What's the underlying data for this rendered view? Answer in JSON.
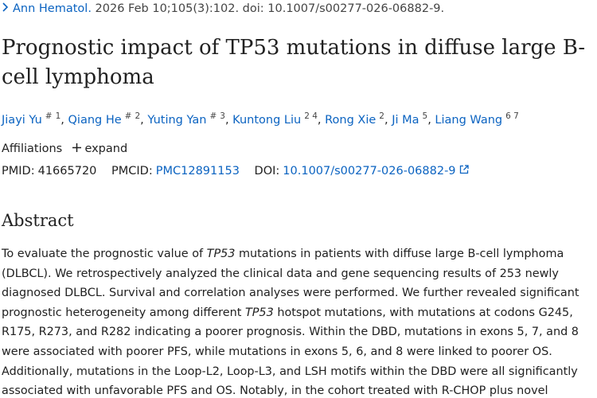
{
  "citation": {
    "journal": "Ann Hematol.",
    "details": "2026 Feb 10;105(3):102. doi: 10.1007/s00277-026-06882-9."
  },
  "title": "Prognostic impact of TP53 mutations in diffuse large B-cell lymphoma",
  "authors_separator": ",",
  "authors": [
    {
      "name": "Jiayi Yu",
      "equal": "#",
      "affiliations": "1"
    },
    {
      "name": "Qiang He",
      "equal": "#",
      "affiliations": "2"
    },
    {
      "name": "Yuting Yan",
      "equal": "#",
      "affiliations": "3"
    },
    {
      "name": "Kuntong Liu",
      "affiliations": "2 4"
    },
    {
      "name": "Rong Xie",
      "affiliations": "2"
    },
    {
      "name": "Ji Ma",
      "affiliations": "5"
    },
    {
      "name": "Liang Wang",
      "affiliations": "6 7"
    }
  ],
  "affiliations_label": "Affiliations",
  "expand_label": "expand",
  "identifiers": {
    "pmid_label": "PMID:",
    "pmid": "41665720",
    "pmcid_label": "PMCID:",
    "pmcid": "PMC12891153",
    "doi_label": "DOI:",
    "doi": "10.1007/s00277-026-06882-9"
  },
  "abstract": {
    "heading": "Abstract",
    "segments": [
      {
        "text": "To evaluate the prognostic value of "
      },
      {
        "text": "TP53",
        "italic": true
      },
      {
        "text": " mutations in patients with diffuse large B-cell lymphoma (DLBCL). We retrospectively analyzed the clinical data and gene sequencing results of 253 newly diagnosed DLBCL. Survival and correlation analyses were performed. We further revealed significant prognostic heterogeneity among different "
      },
      {
        "text": "TP53",
        "italic": true
      },
      {
        "text": " hotspot mutations, with mutations at codons G245, R175, R273, and R282 indicating a poorer prognosis. Within the DBD, mutations in exons 5, 7, and 8 were associated with poorer PFS, while mutations in exons 5, 6, and 8 were linked to poorer OS. Additionally, mutations in the Loop-L2, Loop-L3, and LSH motifs within the DBD were all significantly associated with unfavorable PFS and OS. Notably, in the cohort treated with R-CHOP plus novel"
      }
    ]
  }
}
